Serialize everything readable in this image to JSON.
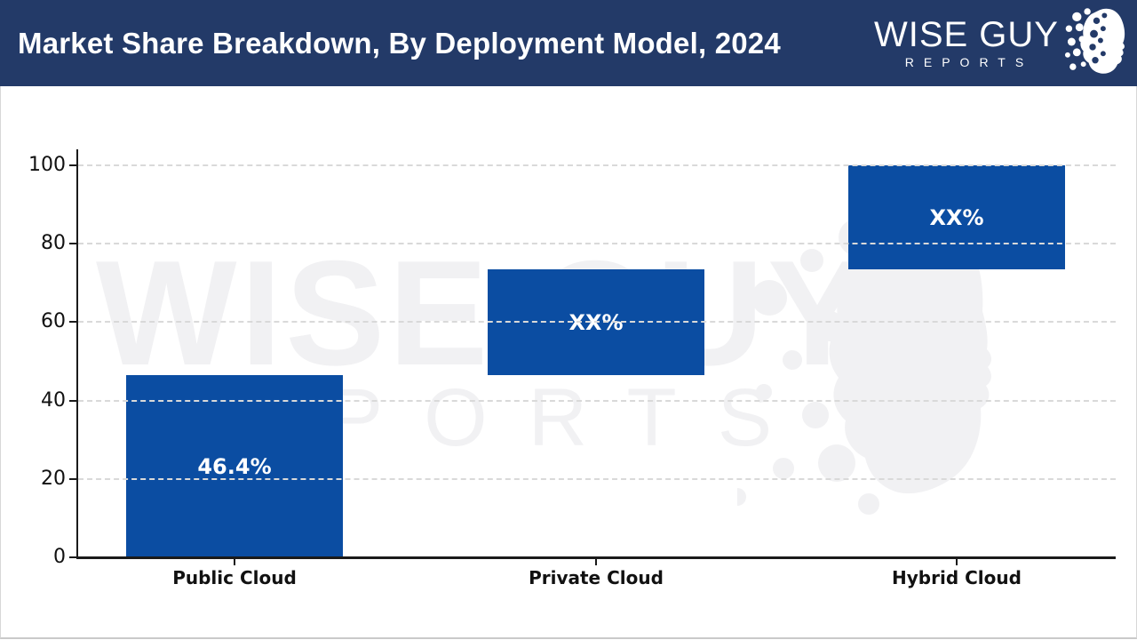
{
  "header": {
    "title": "Market Share Breakdown, By Deployment Model, 2024",
    "bg_color": "#233A68",
    "logo": {
      "line1": "WISE GUY",
      "line2": "REPORTS"
    }
  },
  "watermark": {
    "line1": "WISE GUY",
    "line2": "REPORTS"
  },
  "chart_data": {
    "type": "bar",
    "subtype": "floating-waterfall",
    "title": "Market Share Breakdown, By Deployment Model, 2024",
    "categories": [
      "Public Cloud",
      "Private Cloud",
      "Hybrid Cloud"
    ],
    "series": [
      {
        "name": "Market Share",
        "segments": [
          {
            "category": "Public Cloud",
            "start": 0,
            "end": 46.4,
            "label": "46.4%"
          },
          {
            "category": "Private Cloud",
            "start": 46.4,
            "end": 73.4,
            "label": "XX%"
          },
          {
            "category": "Hybrid Cloud",
            "start": 73.4,
            "end": 100,
            "label": "XX%"
          }
        ]
      }
    ],
    "yticks": [
      0,
      20,
      40,
      60,
      80,
      100
    ],
    "ylim": [
      0,
      105
    ],
    "xlabel": "",
    "ylabel": "",
    "grid": "horizontal-dashed-over-bars",
    "legend": "none",
    "bar_color": "#0B4DA2",
    "bar_label_color": "#FFFFFF"
  }
}
